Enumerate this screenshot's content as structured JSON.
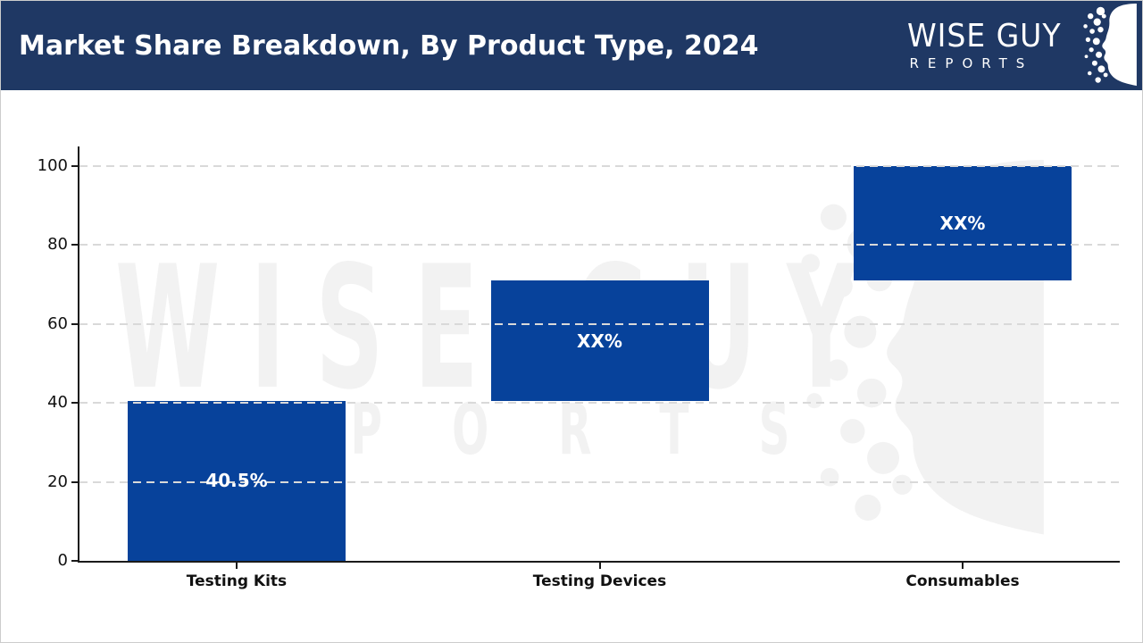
{
  "header": {
    "title": "Market Share Breakdown, By Product Type, 2024",
    "bg_color": "#1f3864",
    "logo": {
      "wordmark": "WISE GUY",
      "subtext": "REPORTS"
    }
  },
  "watermark": {
    "wordmark": "WISE GUY",
    "subtext": "REPORTS"
  },
  "chart_data": {
    "type": "bar",
    "subtype": "waterfall",
    "title": "Market Share Breakdown, By Product Type, 2024",
    "categories": [
      "Testing Kits",
      "Testing Devices",
      "Consumables"
    ],
    "segments": [
      {
        "category": "Testing Kits",
        "start": 0,
        "end": 40.5,
        "label": "40.5%"
      },
      {
        "category": "Testing Devices",
        "start": 40.5,
        "end": 71,
        "label": "XX%"
      },
      {
        "category": "Consumables",
        "start": 71,
        "end": 100,
        "label": "XX%"
      }
    ],
    "xlabel": "",
    "ylabel": "",
    "ylim": [
      0,
      100
    ],
    "yticks": [
      0,
      20,
      40,
      60,
      80,
      100
    ],
    "grid": "horizontal-dashed",
    "legend": "none",
    "bar_color": "#07429b",
    "bar_label_color": "#ffffff",
    "axis_color": "#1a1a1a",
    "grid_color": "#d9d9d9"
  }
}
